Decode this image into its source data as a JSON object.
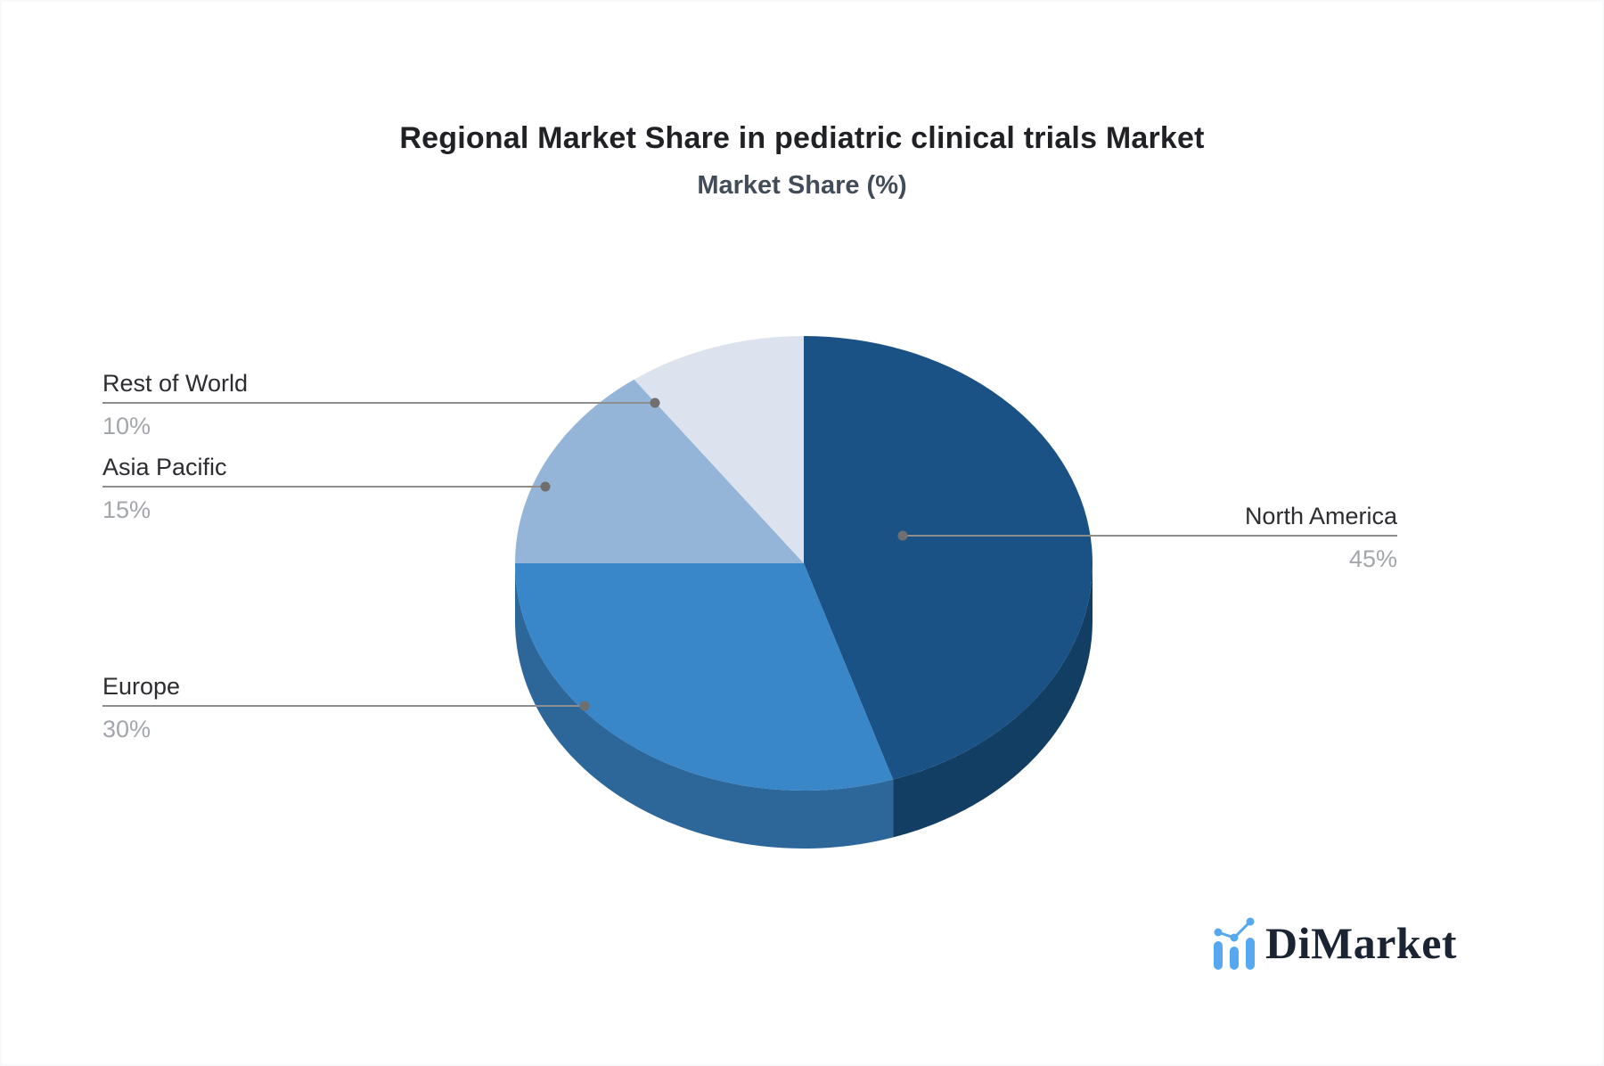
{
  "title": "Regional Market Share in pediatric clinical trials Market",
  "subtitle": "Market Share (%)",
  "logo": {
    "text": "DiMarket",
    "icon": "bar-chart-trend-icon",
    "icon_color": "#56a8ef",
    "text_color": "#1b2433"
  },
  "chart_data": {
    "type": "pie",
    "style": "3d",
    "title": "Regional Market Share in pediatric clinical trials Market",
    "subtitle": "Market Share (%)",
    "unit": "%",
    "labels": [
      "North America",
      "Europe",
      "Asia Pacific",
      "Rest of World"
    ],
    "values": [
      45,
      30,
      15,
      10
    ],
    "display_values": [
      "45%",
      "30%",
      "15%",
      "10%"
    ],
    "colors": [
      "#1a5285",
      "#3986c8",
      "#94b5d8",
      "#dde3ee"
    ],
    "side_colors": [
      "#123e63",
      "#2d679a",
      "#7ea3cb",
      "#c9d3e2"
    ],
    "start_angle_deg": 0,
    "direction": "clockwise",
    "legend_position": "callout-labels",
    "leader_line_color": "#8e8e8e",
    "leader_dot_color": "#6f6f6f"
  }
}
